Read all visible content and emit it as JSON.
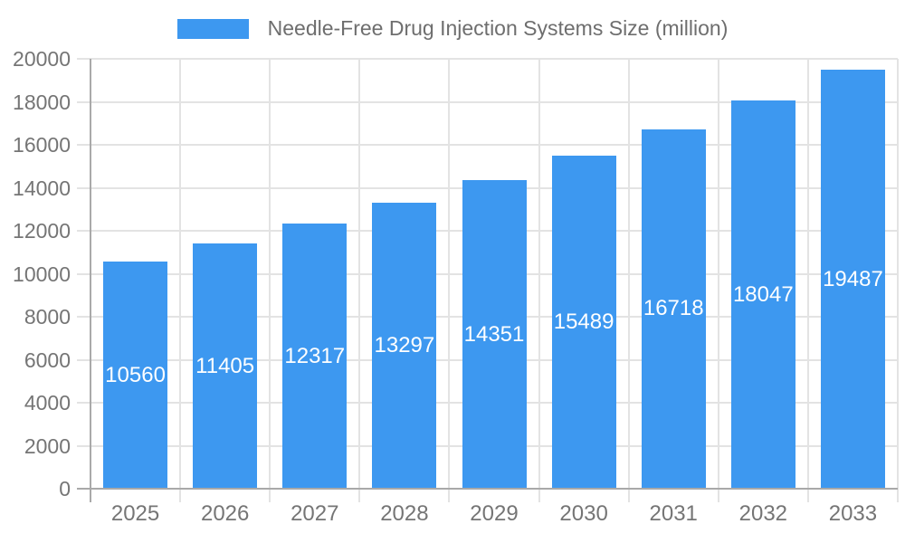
{
  "legend": {
    "label": "Needle-Free Drug Injection Systems Size (million)",
    "swatch_color": "#3D98F0"
  },
  "chart_data": {
    "type": "bar",
    "title": "Needle-Free Drug Injection Systems Size (million)",
    "categories": [
      "2025",
      "2026",
      "2027",
      "2028",
      "2029",
      "2030",
      "2031",
      "2032",
      "2033"
    ],
    "values": [
      10560,
      11405,
      12317,
      13297,
      14351,
      15489,
      16718,
      18047,
      19487
    ],
    "series": [
      {
        "name": "Needle-Free Drug Injection Systems Size (million)",
        "values": [
          10560,
          11405,
          12317,
          13297,
          14351,
          15489,
          16718,
          18047,
          19487
        ]
      }
    ],
    "xlabel": "",
    "ylabel": "",
    "ylim": [
      0,
      20000
    ],
    "yticks": [
      0,
      2000,
      4000,
      6000,
      8000,
      10000,
      12000,
      14000,
      16000,
      18000,
      20000
    ],
    "grid": true,
    "legend_position": "top",
    "colors": {
      "bar": "#3D98F0",
      "bar_value_text": "#ffffff",
      "axis_text": "#757575",
      "legend_text": "#6e6e6e",
      "grid_line": "#e3e3e3",
      "axis_line": "#a9a9a9",
      "background": "#ffffff"
    }
  }
}
